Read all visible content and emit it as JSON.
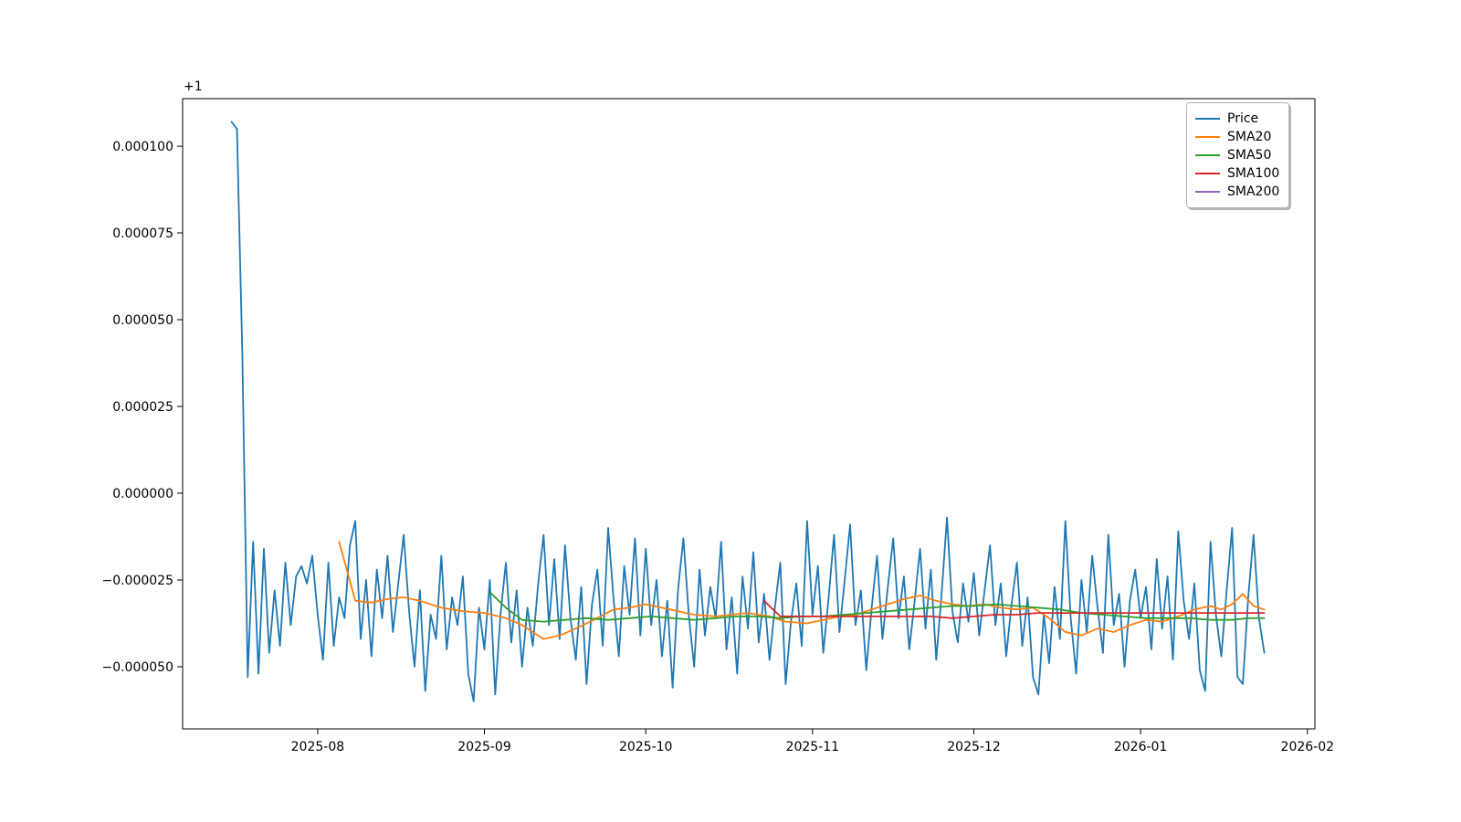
{
  "axes": {
    "offset_text": "+1"
  },
  "legend": {
    "items": [
      {
        "label": "Price",
        "color": "#1f77b4"
      },
      {
        "label": "SMA20",
        "color": "#ff7f0e"
      },
      {
        "label": "SMA50",
        "color": "#2ca02c"
      },
      {
        "label": "SMA100",
        "color": "#d62728"
      },
      {
        "label": "SMA200",
        "color": "#9467bd"
      }
    ]
  },
  "chart_data": {
    "type": "line",
    "title": "",
    "xlabel": "",
    "ylabel": "",
    "grid": false,
    "legend_position": "upper right",
    "y_offset": 1,
    "value_unit": "micro (1e-6) deviation from offset 1",
    "x_axis": {
      "ticks": [
        "2025-08",
        "2025-09",
        "2025-10",
        "2025-11",
        "2025-12",
        "2026-01",
        "2026-02"
      ],
      "lim_days_from_2025_08_01": [
        -25.1,
        185.4
      ]
    },
    "y_axis": {
      "offset_label": "+1",
      "ticks": [
        {
          "label": "0.000100",
          "micro": 100
        },
        {
          "label": "0.000075",
          "micro": 75
        },
        {
          "label": "0.000050",
          "micro": 50
        },
        {
          "label": "0.000025",
          "micro": 25
        },
        {
          "label": "0.000000",
          "micro": 0
        },
        {
          "label": "−0.000025",
          "micro": -25
        },
        {
          "label": "−0.000050",
          "micro": -50
        }
      ],
      "lim_micro": [
        -67.9,
        113.7
      ]
    },
    "series": [
      {
        "name": "Price",
        "color": "#1f77b4",
        "start": "2025-07-16",
        "step_days": 1,
        "values_micro": [
          107,
          105,
          40,
          -53,
          -14,
          -52,
          -16,
          -46,
          -28,
          -44,
          -20,
          -38,
          -24,
          -21,
          -26,
          -18,
          -35,
          -48,
          -20,
          -44,
          -30,
          -36,
          -15,
          -8,
          -42,
          -25,
          -47,
          -22,
          -36,
          -18,
          -40,
          -26,
          -12,
          -34,
          -50,
          -28,
          -57,
          -35,
          -42,
          -18,
          -45,
          -30,
          -38,
          -24,
          -52,
          -60,
          -33,
          -45,
          -25,
          -58,
          -35,
          -20,
          -43,
          -28,
          -50,
          -33,
          -44,
          -26,
          -12,
          -38,
          -19,
          -42,
          -15,
          -36,
          -48,
          -27,
          -55,
          -32,
          -22,
          -44,
          -10,
          -30,
          -47,
          -21,
          -35,
          -13,
          -41,
          -16,
          -38,
          -25,
          -47,
          -31,
          -56,
          -28,
          -13,
          -35,
          -50,
          -22,
          -41,
          -27,
          -36,
          -14,
          -45,
          -30,
          -52,
          -24,
          -39,
          -17,
          -43,
          -29,
          -48,
          -33,
          -20,
          -55,
          -37,
          -26,
          -44,
          -8,
          -35,
          -21,
          -46,
          -30,
          -12,
          -40,
          -25,
          -9,
          -38,
          -28,
          -51,
          -33,
          -18,
          -42,
          -27,
          -13,
          -36,
          -24,
          -45,
          -31,
          -16,
          -39,
          -22,
          -48,
          -29,
          -7,
          -34,
          -43,
          -26,
          -37,
          -23,
          -41,
          -28,
          -15,
          -38,
          -26,
          -47,
          -32,
          -20,
          -44,
          -30,
          -53,
          -58,
          -35,
          -49,
          -27,
          -42,
          -8,
          -36,
          -52,
          -25,
          -40,
          -18,
          -33,
          -46,
          -12,
          -38,
          -29,
          -50,
          -31,
          -22,
          -36,
          -27,
          -45,
          -19,
          -39,
          -24,
          -48,
          -11,
          -31,
          -42,
          -26,
          -51,
          -57,
          -14,
          -35,
          -47,
          -28,
          -10,
          -53,
          -55,
          -30,
          -12,
          -36,
          -46
        ]
      },
      {
        "name": "SMA20",
        "color": "#ff7f0e",
        "points": [
          [
            "2025-08-05",
            -14
          ],
          [
            "2025-08-08",
            -31
          ],
          [
            "2025-08-11",
            -31.5
          ],
          [
            "2025-08-14",
            -30.5
          ],
          [
            "2025-08-17",
            -30
          ],
          [
            "2025-08-20",
            -31
          ],
          [
            "2025-08-24",
            -33
          ],
          [
            "2025-08-28",
            -34
          ],
          [
            "2025-09-01",
            -34.5
          ],
          [
            "2025-09-05",
            -36
          ],
          [
            "2025-09-08",
            -38
          ],
          [
            "2025-09-12",
            -42
          ],
          [
            "2025-09-15",
            -41
          ],
          [
            "2025-09-18",
            -39
          ],
          [
            "2025-09-22",
            -36
          ],
          [
            "2025-09-25",
            -33.5
          ],
          [
            "2025-09-28",
            -33
          ],
          [
            "2025-10-01",
            -32
          ],
          [
            "2025-10-04",
            -33
          ],
          [
            "2025-10-07",
            -34
          ],
          [
            "2025-10-10",
            -35
          ],
          [
            "2025-10-14",
            -35.5
          ],
          [
            "2025-10-17",
            -35
          ],
          [
            "2025-10-20",
            -34.5
          ],
          [
            "2025-10-24",
            -35.5
          ],
          [
            "2025-10-27",
            -37
          ],
          [
            "2025-10-31",
            -37.5
          ],
          [
            "2025-11-03",
            -36.5
          ],
          [
            "2025-11-06",
            -35.5
          ],
          [
            "2025-11-09",
            -35
          ],
          [
            "2025-11-12",
            -33.5
          ],
          [
            "2025-11-15",
            -32
          ],
          [
            "2025-11-18",
            -30.5
          ],
          [
            "2025-11-21",
            -29.5
          ],
          [
            "2025-11-24",
            -31
          ],
          [
            "2025-11-27",
            -32
          ],
          [
            "2025-11-30",
            -32.5
          ],
          [
            "2025-12-03",
            -32
          ],
          [
            "2025-12-06",
            -33
          ],
          [
            "2025-12-09",
            -33.5
          ],
          [
            "2025-12-12",
            -33
          ],
          [
            "2025-12-15",
            -36
          ],
          [
            "2025-12-18",
            -40
          ],
          [
            "2025-12-21",
            -41
          ],
          [
            "2025-12-24",
            -39
          ],
          [
            "2025-12-27",
            -40
          ],
          [
            "2025-12-30",
            -38
          ],
          [
            "2026-01-02",
            -36.5
          ],
          [
            "2026-01-05",
            -37
          ],
          [
            "2026-01-08",
            -35.5
          ],
          [
            "2026-01-11",
            -33.5
          ],
          [
            "2026-01-14",
            -32.5
          ],
          [
            "2026-01-16",
            -33.5
          ],
          [
            "2026-01-18",
            -32
          ],
          [
            "2026-01-20",
            -29
          ],
          [
            "2026-01-22",
            -32.5
          ],
          [
            "2026-01-24",
            -33.5
          ]
        ]
      },
      {
        "name": "SMA50",
        "color": "#2ca02c",
        "points": [
          [
            "2025-09-02",
            -28.5
          ],
          [
            "2025-09-05",
            -33
          ],
          [
            "2025-09-08",
            -36.5
          ],
          [
            "2025-09-12",
            -37
          ],
          [
            "2025-09-16",
            -36.5
          ],
          [
            "2025-09-20",
            -36
          ],
          [
            "2025-09-24",
            -36.5
          ],
          [
            "2025-09-28",
            -36
          ],
          [
            "2025-10-02",
            -35.5
          ],
          [
            "2025-10-06",
            -36
          ],
          [
            "2025-10-10",
            -36.5
          ],
          [
            "2025-10-14",
            -36
          ],
          [
            "2025-10-18",
            -35.5
          ],
          [
            "2025-10-22",
            -35.5
          ],
          [
            "2025-10-26",
            -36
          ],
          [
            "2025-10-30",
            -35.5
          ],
          [
            "2025-11-03",
            -35.5
          ],
          [
            "2025-11-07",
            -35
          ],
          [
            "2025-11-11",
            -34.5
          ],
          [
            "2025-11-15",
            -34
          ],
          [
            "2025-11-19",
            -33.5
          ],
          [
            "2025-11-23",
            -33
          ],
          [
            "2025-11-27",
            -32.5
          ],
          [
            "2025-12-01",
            -32.5
          ],
          [
            "2025-12-05",
            -32
          ],
          [
            "2025-12-09",
            -32.5
          ],
          [
            "2025-12-13",
            -33
          ],
          [
            "2025-12-17",
            -33.5
          ],
          [
            "2025-12-21",
            -34.5
          ],
          [
            "2025-12-25",
            -35
          ],
          [
            "2025-12-29",
            -35.5
          ],
          [
            "2026-01-02",
            -36
          ],
          [
            "2026-01-06",
            -36
          ],
          [
            "2026-01-10",
            -36
          ],
          [
            "2026-01-14",
            -36.5
          ],
          [
            "2026-01-18",
            -36.5
          ],
          [
            "2026-01-21",
            -36
          ],
          [
            "2026-01-24",
            -36
          ]
        ]
      },
      {
        "name": "SMA100",
        "color": "#d62728",
        "points": [
          [
            "2025-10-23",
            -31
          ],
          [
            "2025-10-26",
            -35.5
          ],
          [
            "2025-10-30",
            -35.5
          ],
          [
            "2025-11-03",
            -35.5
          ],
          [
            "2025-11-07",
            -35.5
          ],
          [
            "2025-11-11",
            -35.5
          ],
          [
            "2025-11-15",
            -35.5
          ],
          [
            "2025-11-19",
            -35.5
          ],
          [
            "2025-11-23",
            -35.5
          ],
          [
            "2025-11-27",
            -36
          ],
          [
            "2025-12-01",
            -35.5
          ],
          [
            "2025-12-05",
            -35
          ],
          [
            "2025-12-09",
            -35
          ],
          [
            "2025-12-13",
            -34.5
          ],
          [
            "2025-12-17",
            -34.5
          ],
          [
            "2025-12-21",
            -34.5
          ],
          [
            "2025-12-25",
            -34.5
          ],
          [
            "2025-12-29",
            -34.5
          ],
          [
            "2026-01-02",
            -34.5
          ],
          [
            "2026-01-06",
            -34.5
          ],
          [
            "2026-01-10",
            -34.5
          ],
          [
            "2026-01-14",
            -34.5
          ],
          [
            "2026-01-18",
            -34.5
          ],
          [
            "2026-01-21",
            -34.5
          ],
          [
            "2026-01-24",
            -34.5
          ]
        ]
      },
      {
        "name": "SMA200",
        "color": "#9467bd",
        "points": []
      }
    ]
  }
}
